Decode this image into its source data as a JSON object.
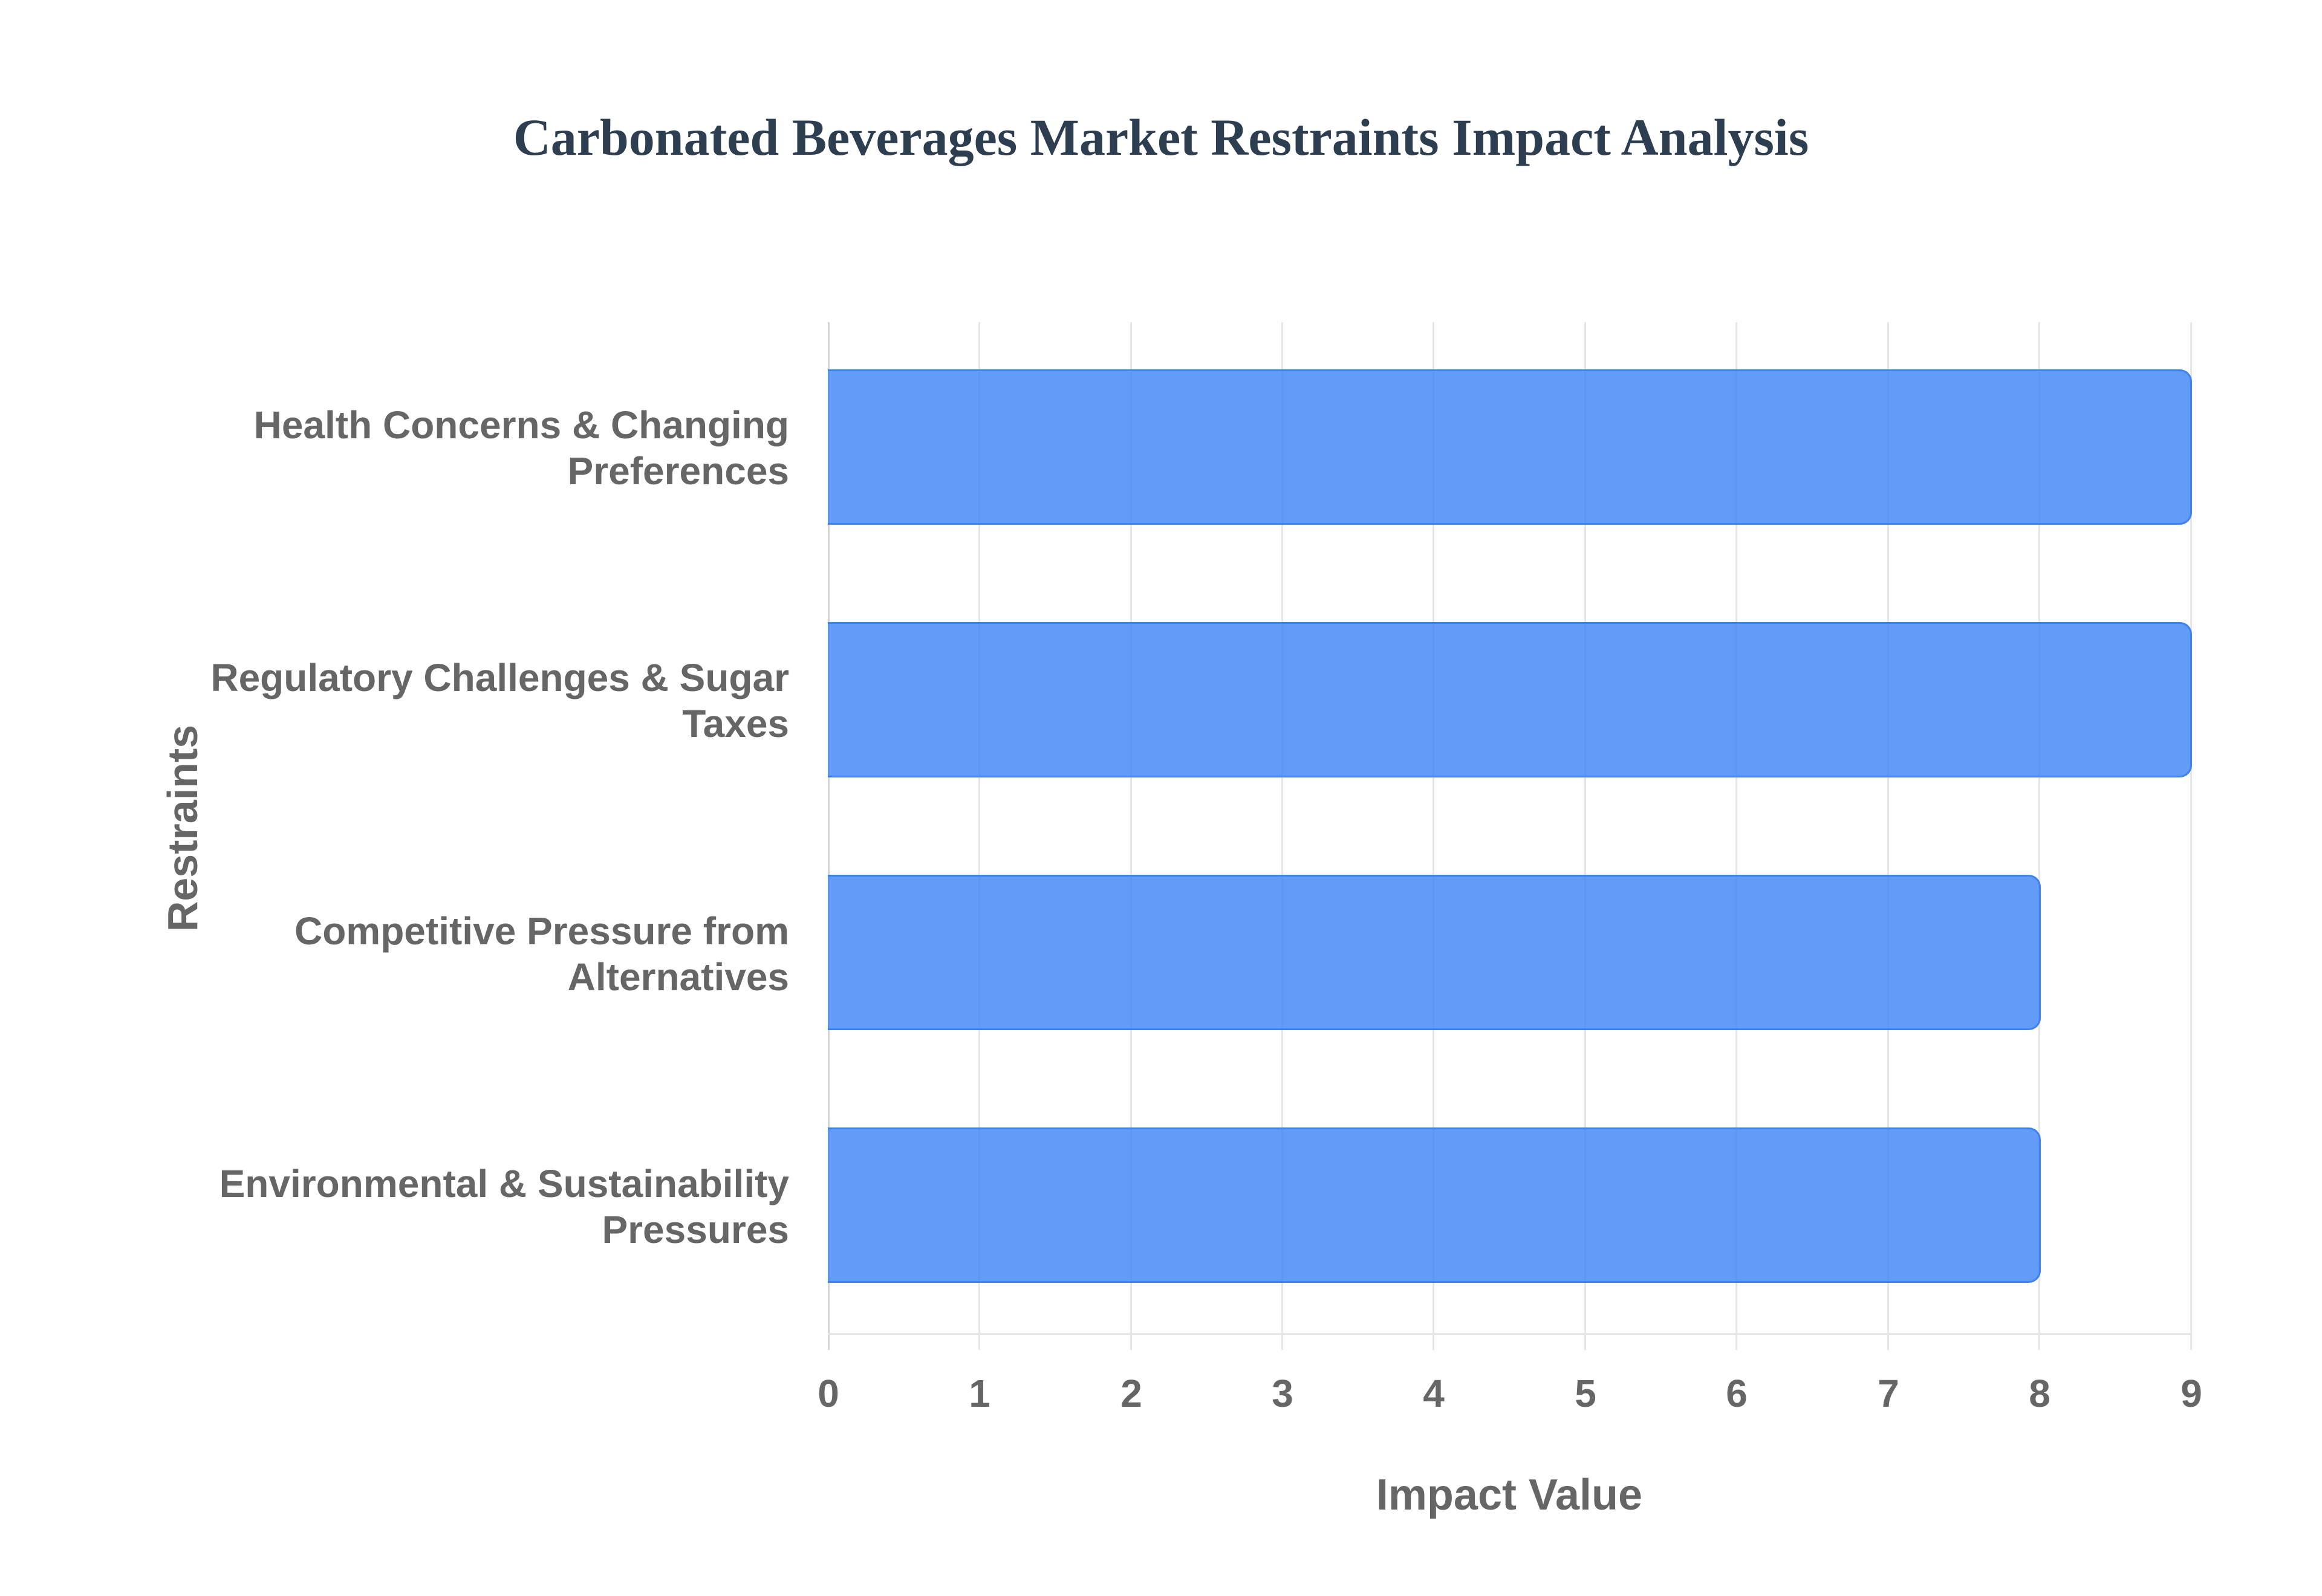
{
  "title": "Carbonated Beverages Market Restraints Impact Analysis",
  "colors": {
    "bar_fill": "rgba(59,130,246,0.8)",
    "bar_border": "#3b82f6",
    "title": "#2c3e50",
    "axis_text": "#666666",
    "grid": "#e6e6e6"
  },
  "x_axis": {
    "title": "Impact Value",
    "ticks": [
      "0",
      "1",
      "2",
      "3",
      "4",
      "5",
      "6",
      "7",
      "8",
      "9"
    ]
  },
  "y_axis": {
    "title": "Restraints",
    "categories": [
      {
        "line1": "Health Concerns & Changing",
        "line2": "Preferences"
      },
      {
        "line1": "Regulatory Challenges & Sugar",
        "line2": "Taxes"
      },
      {
        "line1": "Competitive Pressure from",
        "line2": "Alternatives"
      },
      {
        "line1": "Environmental & Sustainability",
        "line2": "Pressures"
      }
    ]
  },
  "chart_data": {
    "type": "bar",
    "orientation": "horizontal",
    "title": "Carbonated Beverages Market Restraints Impact Analysis",
    "xlabel": "Impact Value",
    "ylabel": "Restraints",
    "categories": [
      "Health Concerns & Changing Preferences",
      "Regulatory Challenges & Sugar Taxes",
      "Competitive Pressure from Alternatives",
      "Environmental & Sustainability Pressures"
    ],
    "values": [
      9,
      9,
      8,
      8
    ],
    "xlim": [
      0,
      9
    ],
    "x_ticks": [
      0,
      1,
      2,
      3,
      4,
      5,
      6,
      7,
      8,
      9
    ],
    "grid": true,
    "legend": null,
    "bar_color": "#3b82f6"
  }
}
